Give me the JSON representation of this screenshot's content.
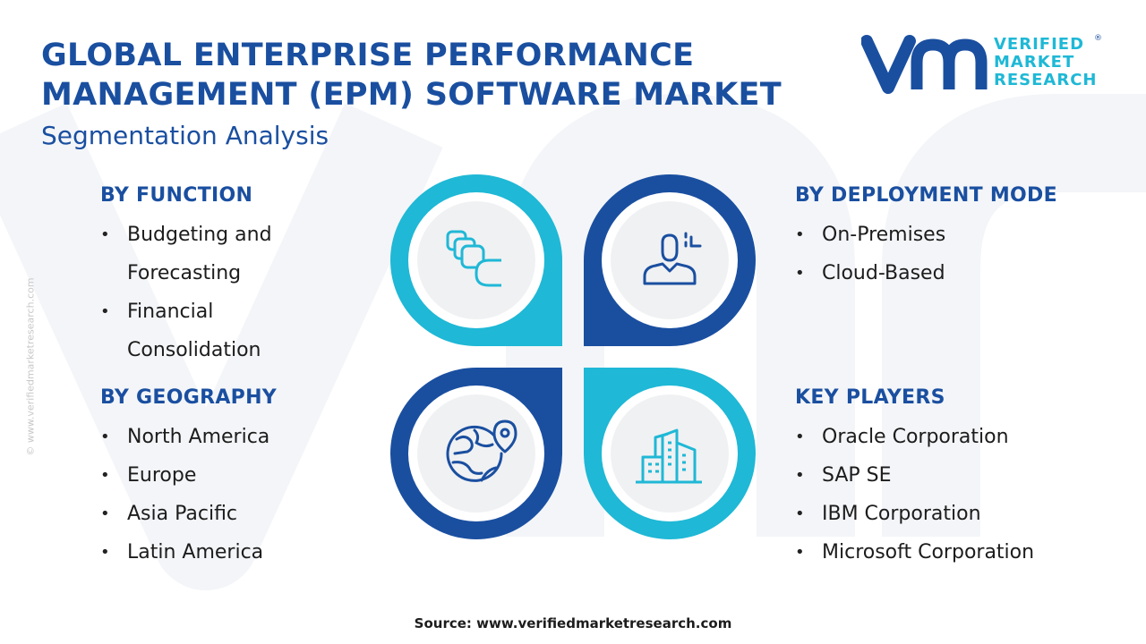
{
  "header": {
    "title_line1": "GLOBAL ENTERPRISE PERFORMANCE",
    "title_line2": "MANAGEMENT (EPM) SOFTWARE MARKET",
    "subtitle": "Segmentation Analysis"
  },
  "logo": {
    "line1": "VERIFIED",
    "line2": "MARKET",
    "line3": "RESEARCH",
    "registered": "®"
  },
  "segments": {
    "function": {
      "heading": "BY FUNCTION",
      "items": [
        "Budgeting and Forecasting",
        "Financial Consolidation"
      ]
    },
    "geography": {
      "heading": "BY GEOGRAPHY",
      "items": [
        "North America",
        "Europe",
        "Asia Pacific",
        "Latin America"
      ]
    },
    "deployment": {
      "heading": "BY DEPLOYMENT MODE",
      "items": [
        "On-Premises",
        "Cloud-Based"
      ]
    },
    "players": {
      "heading": "KEY PLAYERS",
      "items": [
        "Oracle Corporation",
        "SAP SE",
        "IBM Corporation",
        "Microsoft Corporation"
      ]
    }
  },
  "icons": {
    "top_left": "stacked-layers-icon",
    "top_right": "user-settings-icon",
    "bottom_left": "globe-location-icon",
    "bottom_right": "buildings-icon"
  },
  "colors": {
    "dark_blue": "#1a4fa0",
    "cyan": "#1fb8d6",
    "circle_fill": "#f0f1f3"
  },
  "footer": {
    "source": "Source: www.verifiedmarketresearch.com",
    "side_credit": "© www.verifiedmarketresearch.com"
  }
}
